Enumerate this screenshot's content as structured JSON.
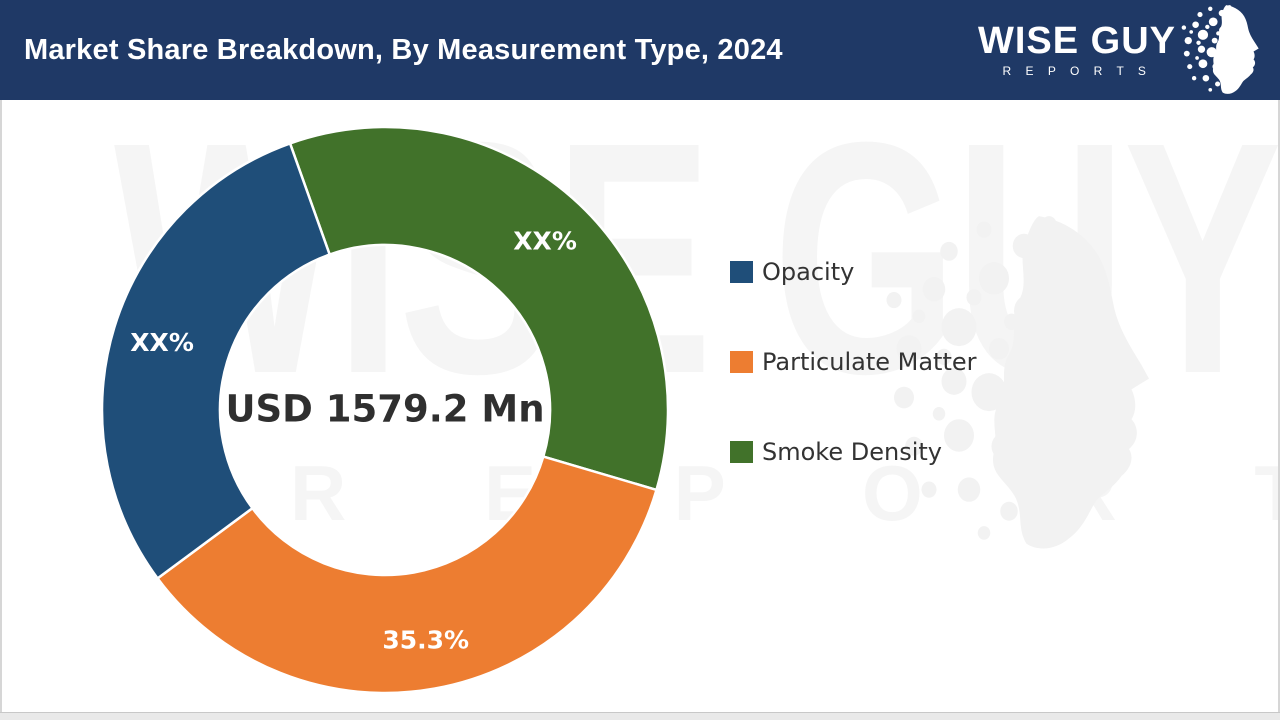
{
  "header": {
    "title": "Market Share Breakdown, By Measurement Type, 2024",
    "logo": {
      "name": "WISE GUY",
      "sub": "R E P O R T S"
    }
  },
  "watermark": {
    "line1": "WISE GUY",
    "line2": "R E P O R T S"
  },
  "chart_data": {
    "type": "pie",
    "subtype": "donut",
    "title": "Market Share Breakdown, By Measurement Type, 2024",
    "center_label": "USD 1579.2 Mn",
    "units": "percent share",
    "start_angle_deg": -19.6,
    "outer_radius_px": 283,
    "inner_radius_px": 165,
    "segments": [
      {
        "label": "Smoke Density",
        "share_pct": 35.0,
        "display_label": "XX%",
        "color": "#41722A"
      },
      {
        "label": "Particulate Matter",
        "share_pct": 35.3,
        "display_label": "35.3%",
        "color": "#ED7D31"
      },
      {
        "label": "Opacity",
        "share_pct": 29.7,
        "display_label": "XX%",
        "color": "#1F4E79"
      }
    ],
    "legend_position": "right"
  },
  "legend": {
    "items": [
      {
        "label": "Opacity",
        "color": "#1F4E79"
      },
      {
        "label": "Particulate Matter",
        "color": "#ED7D31"
      },
      {
        "label": "Smoke Density",
        "color": "#41722A"
      }
    ]
  },
  "colors": {
    "header_bg": "#1F3966",
    "title_text": "#FFFFFF",
    "center_text": "#2F2F2F",
    "legend_text": "#333333",
    "watermark": "#F5F5F5",
    "footer_strip": "#E9E9E9"
  }
}
